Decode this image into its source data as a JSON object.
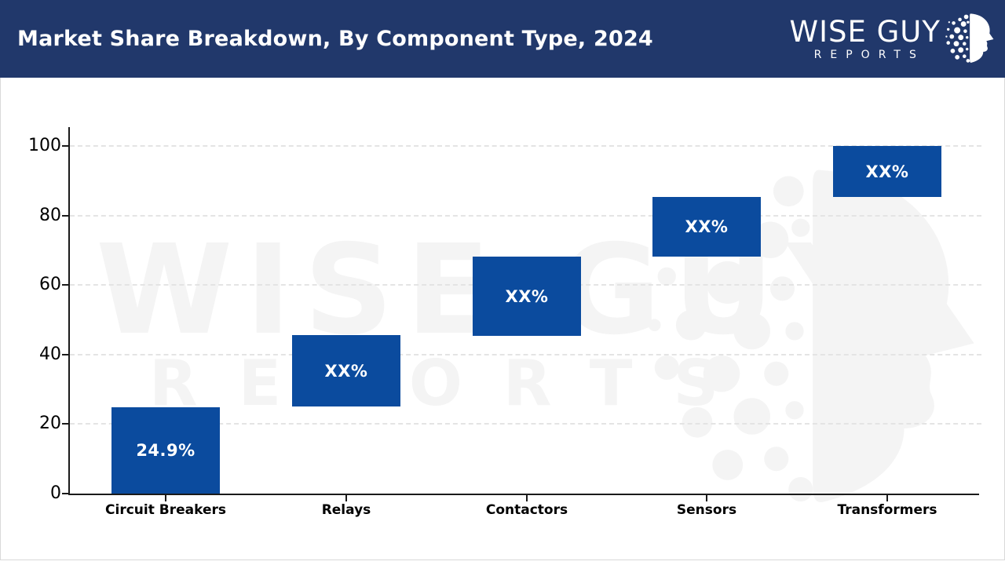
{
  "header": {
    "title": "Market Share Breakdown, By Component Type, 2024",
    "bg_color": "#21386b",
    "logo": {
      "line1": "WISE GUY",
      "line2": "REPORTS"
    }
  },
  "watermark": {
    "line1": "WISE GUY",
    "line2": "REPORTS"
  },
  "chart_data": {
    "type": "bar",
    "subtype": "waterfall",
    "title": "Market Share Breakdown, By Component Type, 2024",
    "categories": [
      "Circuit Breakers",
      "Relays",
      "Contactors",
      "Sensors",
      "Transformers"
    ],
    "segments": [
      {
        "category": "Circuit Breakers",
        "start": 0,
        "end": 24.9,
        "label": "24.9%"
      },
      {
        "category": "Relays",
        "start": 24.9,
        "end": 45.5,
        "label": "XX%"
      },
      {
        "category": "Contactors",
        "start": 45.5,
        "end": 68.2,
        "label": "XX%"
      },
      {
        "category": "Sensors",
        "start": 68.2,
        "end": 85.3,
        "label": "XX%"
      },
      {
        "category": "Transformers",
        "start": 85.3,
        "end": 100,
        "label": "XX%"
      }
    ],
    "yticks": [
      0,
      20,
      40,
      60,
      80,
      100
    ],
    "ylim": [
      0,
      105
    ],
    "xlabel": "",
    "ylabel": "",
    "grid": "horizontal-dashed",
    "legend": "none",
    "bar_color": "#0b4b9e",
    "bar_label_color": "#ffffff",
    "axis_color": "#1a1a1a",
    "gridline_color": "#e4e4e4"
  }
}
